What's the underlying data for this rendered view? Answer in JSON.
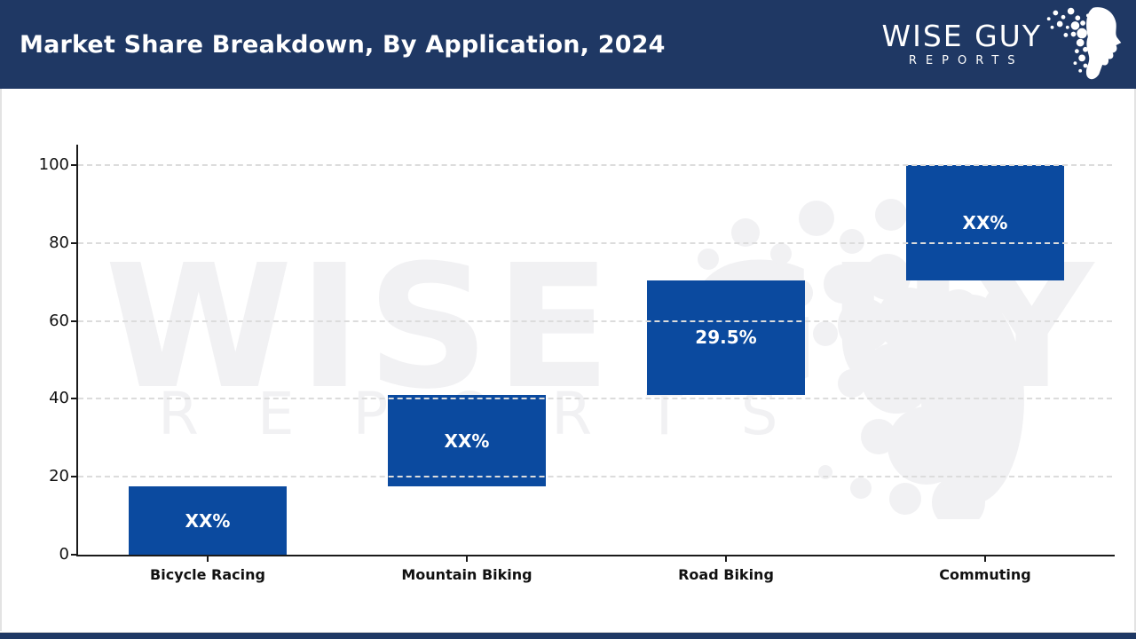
{
  "header": {
    "title": "Market Share Breakdown, By Application, 2024",
    "logo": {
      "line1": "WISE GUY",
      "line2": "REPORTS"
    }
  },
  "watermark": {
    "line1": "WISE GUY",
    "line2": "REPORTS"
  },
  "colors": {
    "header_navy": "#1f3864",
    "bar_blue": "#0b4a9f",
    "grid_gray": "#dcdcdc",
    "watermark_gray": "#f1f1f3",
    "axis_black": "#1a1a1a"
  },
  "chart_data": {
    "type": "bar",
    "subtype": "floating-waterfall",
    "title": "Market Share Breakdown, By Application, 2024",
    "categories": [
      "Bicycle Racing",
      "Mountain Biking",
      "Road Biking",
      "Commuting"
    ],
    "segments": [
      {
        "category": "Bicycle Racing",
        "start": 0,
        "end": 17.5,
        "height": 17.5,
        "label": "XX%"
      },
      {
        "category": "Mountain Biking",
        "start": 17.5,
        "end": 41,
        "height": 23.5,
        "label": "XX%"
      },
      {
        "category": "Road Biking",
        "start": 41,
        "end": 70.5,
        "height": 29.5,
        "label": "29.5%"
      },
      {
        "category": "Commuting",
        "start": 70.5,
        "end": 100,
        "height": 29.5,
        "label": "XX%"
      }
    ],
    "xlabel": "",
    "ylabel": "",
    "ylim": [
      0,
      105
    ],
    "yticks": [
      0,
      20,
      40,
      60,
      80,
      100
    ],
    "grid": {
      "axis": "y",
      "style": "dashed",
      "over_bars": true
    },
    "legend": "none",
    "bar_color": "#0b4a9f",
    "bar_label_color": "#ffffff"
  }
}
